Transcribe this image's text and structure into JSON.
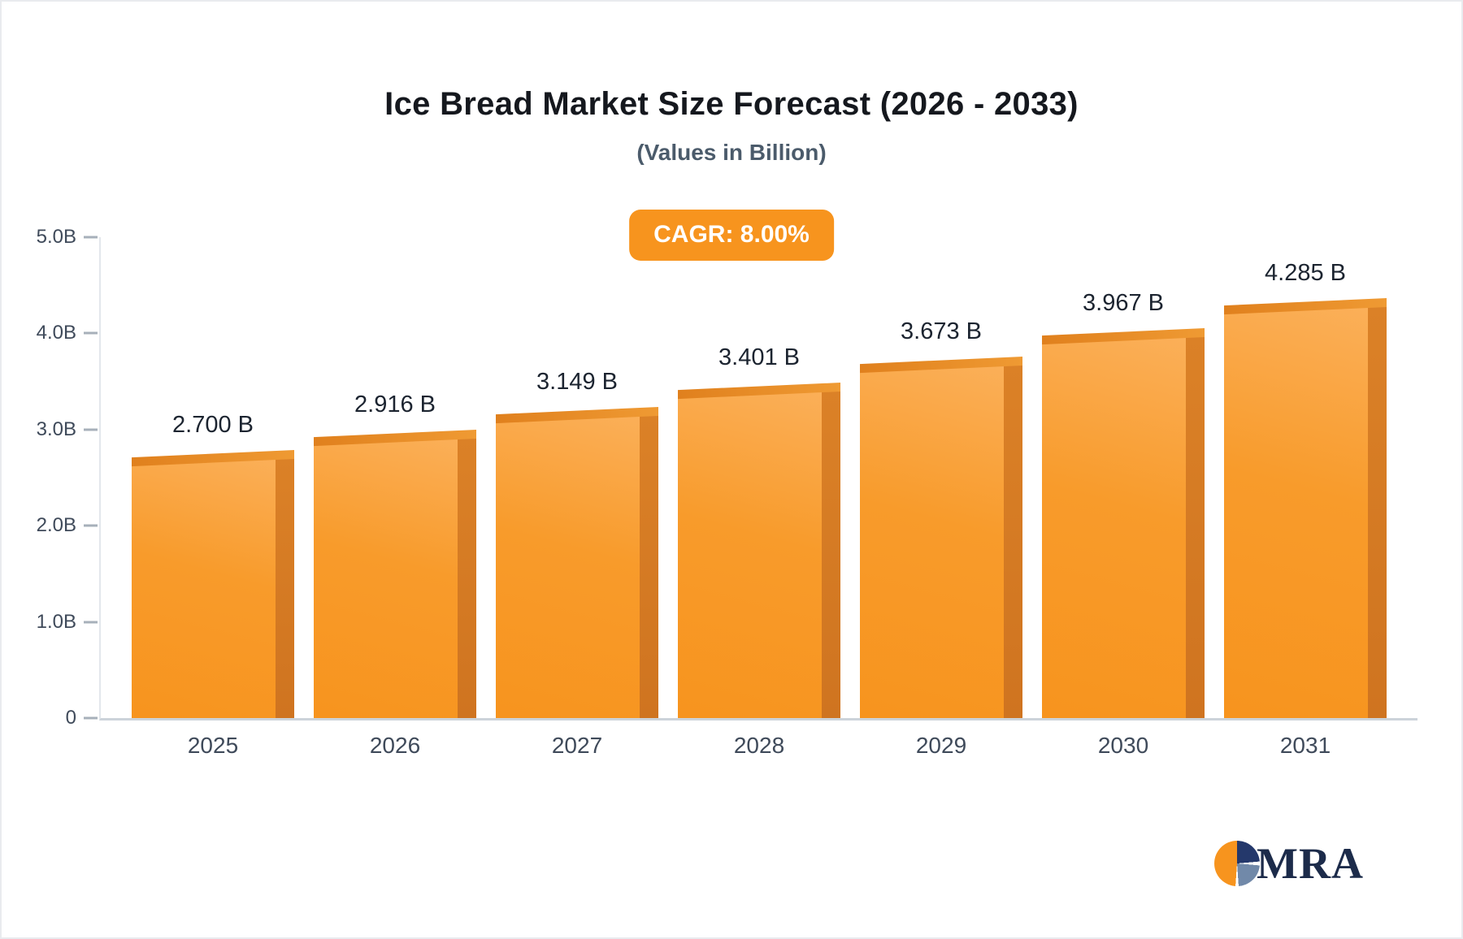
{
  "page": {
    "title": "Ice Bread Market Size Forecast (2026 - 2033)",
    "subtitle": "(Values in Billion)",
    "cagr_badge": "CAGR: 8.00%"
  },
  "logo": {
    "text": "MRA"
  },
  "chart_data": {
    "type": "bar",
    "title": "Ice Bread Market Size Forecast (2026 - 2033)",
    "subtitle": "(Values in Billion)",
    "cagr": "8.00%",
    "categories": [
      "2025",
      "2026",
      "2027",
      "2028",
      "2029",
      "2030",
      "2031"
    ],
    "values": [
      2.7,
      2.916,
      3.149,
      3.401,
      3.673,
      3.967,
      4.285
    ],
    "value_labels": [
      "2.700 B",
      "2.916 B",
      "3.149 B",
      "3.401 B",
      "3.673 B",
      "3.967 B",
      "4.285 B"
    ],
    "unit": "Billion",
    "xlabel": "",
    "ylabel": "",
    "ylim": [
      0,
      5
    ],
    "yticks": [
      "0",
      "1.0B",
      "2.0B",
      "3.0B",
      "4.0B",
      "5.0B"
    ],
    "grid": false,
    "legend": false,
    "bar_color": "#F7941E",
    "bar_side_color": "#CF7420",
    "badge_color": "#F7941E",
    "title_color": "#15181E",
    "subtitle_color": "#4B5B6B"
  }
}
